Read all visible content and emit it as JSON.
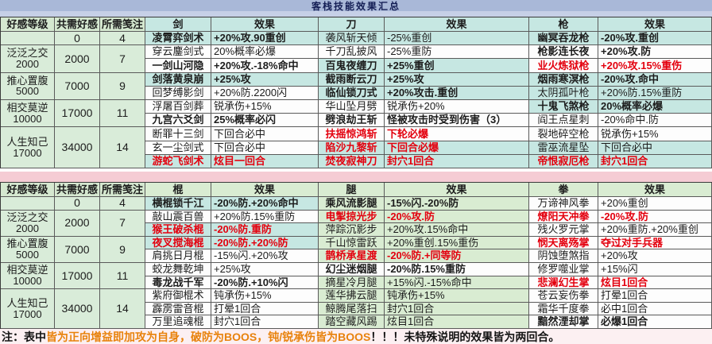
{
  "title": "客栈技能效果汇总",
  "effect_header": "效果",
  "left_headers": [
    "好感等级",
    "共需好感",
    "所需笺注"
  ],
  "levels": [
    {
      "name": "",
      "sub": "",
      "favor": "0",
      "notes": "4",
      "span": 1
    },
    {
      "name": "泛泛之交",
      "sub": "2000",
      "favor": "2000",
      "notes": "7",
      "span": 2
    },
    {
      "name": "推心置腹",
      "sub": "5000",
      "favor": "7000",
      "notes": "9",
      "span": 2
    },
    {
      "name": "相交莫逆",
      "sub": "10000",
      "favor": "17000",
      "notes": "11",
      "span": 2
    },
    {
      "name": "人生知己",
      "sub": "17000",
      "favor": "34000",
      "notes": "14",
      "span": 3
    }
  ],
  "tables": [
    {
      "header_bg": "c",
      "weapons": [
        {
          "header": "剑",
          "skills": [
            {
              "n": "凌霄弈剑术",
              "e": "+20%攻.90重创",
              "bg": "c",
              "b": true,
              "r": false
            },
            {
              "n": "穿云鏖剑式",
              "e": "20%概率必爆",
              "bg": "w",
              "b": false,
              "r": false
            },
            {
              "n": "一剑山河隐",
              "e": "+20%攻.-18%命中",
              "bg": "w",
              "b": true,
              "r": false
            },
            {
              "n": "剑落黄泉崩",
              "e": "+25%攻",
              "bg": "c",
              "b": true,
              "r": false
            },
            {
              "n": "回梦缚影剑",
              "e": "+20%防.2200闪",
              "bg": "w",
              "b": false,
              "r": false
            },
            {
              "n": "浮屠百剑葬",
              "e": "锐承伤+15%",
              "bg": "w",
              "b": false,
              "r": false
            },
            {
              "n": "九宫六爻剑",
              "e": "25%概率必闪",
              "bg": "w",
              "b": true,
              "r": false
            },
            {
              "n": "断罪十三剑",
              "e": "下回合必中",
              "bg": "w",
              "b": false,
              "r": false
            },
            {
              "n": "玄一尘剑式",
              "e": "下回合必中",
              "bg": "w",
              "b": false,
              "r": false
            },
            {
              "n": "游蛇飞剑术",
              "e": "炫目一回合",
              "bg": "c",
              "b": true,
              "r": true
            }
          ]
        },
        {
          "header": "刀",
          "skills": [
            {
              "n": "袭风斩天倾",
              "e": "-25%重创",
              "bg": "c",
              "b": false,
              "r": false
            },
            {
              "n": "千刀乱披风",
              "e": "-25%重防",
              "bg": "w",
              "b": false,
              "r": false
            },
            {
              "n": "百鬼夜缠刀",
              "e": "+25%重创",
              "bg": "c",
              "b": true,
              "r": false
            },
            {
              "n": "截雨断云刀",
              "e": "+25%攻",
              "bg": "c",
              "b": true,
              "r": false
            },
            {
              "n": "临仙锁刀式",
              "e": "+20%攻击.重创",
              "bg": "c",
              "b": true,
              "r": false
            },
            {
              "n": "华山坠月劈",
              "e": "锐承伤+20%",
              "bg": "w",
              "b": false,
              "r": false
            },
            {
              "n": "劈浪劫王斩",
              "e": "怪被攻击时受到伤害（3）",
              "bg": "w",
              "b": true,
              "r": false
            },
            {
              "n": "扶摇惊鸿斩",
              "e": "下轮必爆",
              "bg": "w",
              "b": true,
              "r": true
            },
            {
              "n": "陷沙九黎斩",
              "e": "下回合必爆",
              "bg": "c",
              "b": true,
              "r": true
            },
            {
              "n": "焚夜寂神刀",
              "e": "封穴1回合",
              "bg": "c",
              "b": true,
              "r": true
            }
          ]
        },
        {
          "header": "枪",
          "skills": [
            {
              "n": "幽冥吞龙枪",
              "e": "-20%攻.重创",
              "bg": "c",
              "b": true,
              "r": false
            },
            {
              "n": "枪影连长夜",
              "e": "+20%攻.防",
              "bg": "w",
              "b": true,
              "r": false
            },
            {
              "n": "业火炼狱枪",
              "e": "+20%攻.15%重伤",
              "bg": "w",
              "b": true,
              "r": true
            },
            {
              "n": "烟雨寒溟枪",
              "e": "-20%攻.命中",
              "bg": "c",
              "b": true,
              "r": false
            },
            {
              "n": "太阴孤叶枪",
              "e": "+20%防.15%重防",
              "bg": "c",
              "b": false,
              "r": false
            },
            {
              "n": "十鬼飞煞枪",
              "e": "20%概率必爆",
              "bg": "c",
              "b": true,
              "r": false
            },
            {
              "n": "阎王点星刺",
              "e": "-20%命中.防",
              "bg": "w",
              "b": false,
              "r": false
            },
            {
              "n": "裂地碎空枪",
              "e": "锐承伤+15%",
              "bg": "w",
              "b": false,
              "r": false
            },
            {
              "n": "雷巫流星坠",
              "e": "下回合必中",
              "bg": "c",
              "b": false,
              "r": false
            },
            {
              "n": "帝恨寂厄枪",
              "e": "封穴1回合",
              "bg": "c",
              "b": true,
              "r": true
            }
          ]
        }
      ]
    },
    {
      "header_bg": "g",
      "weapons": [
        {
          "header": "棍",
          "skills": [
            {
              "n": "横棍锁千江",
              "e": "-20%防.+20%命中",
              "bg": "c",
              "b": true,
              "r": false
            },
            {
              "n": "敲山震百兽",
              "e": "+20%防.15%重防",
              "bg": "w",
              "b": false,
              "r": false
            },
            {
              "n": "猴王破杀棍",
              "e": "-20%防.重防",
              "bg": "c",
              "b": true,
              "r": true
            },
            {
              "n": "夜叉搅海棍",
              "e": "-20%防.+20%防",
              "bg": "c",
              "b": true,
              "r": true
            },
            {
              "n": "肩挑日月棍",
              "e": "-15%闪.+20%攻",
              "bg": "w",
              "b": false,
              "r": false
            },
            {
              "n": "蛟龙舞乾坤",
              "e": "+25%攻",
              "bg": "w",
              "b": false,
              "r": false
            },
            {
              "n": "毒龙战千军",
              "e": "-20%防.+10%闪",
              "bg": "w",
              "b": true,
              "r": false
            },
            {
              "n": "紫府御棍术",
              "e": "钝承伤+15%",
              "bg": "w",
              "b": false,
              "r": false
            },
            {
              "n": "霹雳雷音棍",
              "e": "打晕1回合",
              "bg": "w",
              "b": false,
              "r": false
            },
            {
              "n": "万里追魂棍",
              "e": "封穴1回合",
              "bg": "w",
              "b": false,
              "r": false
            }
          ]
        },
        {
          "header": "腿",
          "skills": [
            {
              "n": "乘风流影腿",
              "e": "-15%闪.-20%防",
              "bg": "g",
              "b": true,
              "r": false
            },
            {
              "n": "电掣掠光步",
              "e": "-20%攻.防",
              "bg": "g",
              "b": true,
              "r": true
            },
            {
              "n": "萍踪沉影步",
              "e": "+20%攻.15%命中",
              "bg": "g",
              "b": false,
              "r": false
            },
            {
              "n": "千山惊雷跃",
              "e": "+20%重创.15%重伤",
              "bg": "g",
              "b": false,
              "r": false
            },
            {
              "n": "鹊桥承星渡",
              "e": "-20%防.+同等防",
              "bg": "g",
              "b": true,
              "r": true
            },
            {
              "n": "幻尘迷烟腿",
              "e": "-20%防.15%重防",
              "bg": "w",
              "b": true,
              "r": false
            },
            {
              "n": "摘星冷月腿",
              "e": "+15%闪.-15%命中",
              "bg": "g",
              "b": false,
              "r": false
            },
            {
              "n": "莲华拂云腿",
              "e": "钝承伤+15%",
              "bg": "g",
              "b": false,
              "r": false
            },
            {
              "n": "鲸腾尾落扫",
              "e": "封穴1回合",
              "bg": "g",
              "b": false,
              "r": false
            },
            {
              "n": "踏空藏风踢",
              "e": "炫目1回合",
              "bg": "g",
              "b": false,
              "r": false
            }
          ]
        },
        {
          "header": "拳",
          "skills": [
            {
              "n": "万谛神风拳",
              "e": "+20%重创",
              "bg": "w",
              "b": false,
              "r": false
            },
            {
              "n": "燎阳天冲拳",
              "e": "-20%攻.防",
              "bg": "w",
              "b": true,
              "r": true
            },
            {
              "n": "残火罗元掌",
              "e": "+20%重防.+20%重创",
              "bg": "w",
              "b": false,
              "r": false
            },
            {
              "n": "悯天离殇掌",
              "e": "夺过对手兵器",
              "bg": "w",
              "b": true,
              "r": true
            },
            {
              "n": "阴蚀堕煞指",
              "e": "+20%攻",
              "bg": "w",
              "b": false,
              "r": false
            },
            {
              "n": "修罗噬业掌",
              "e": "+15%闪",
              "bg": "w",
              "b": false,
              "r": false
            },
            {
              "n": "悲澜幻生掌",
              "e": "炫目1回合",
              "bg": "w",
              "b": true,
              "r": true
            },
            {
              "n": "苍云妄伤拳",
              "e": "打晕1回合",
              "bg": "w",
              "b": false,
              "r": false
            },
            {
              "n": "霜华千度拳",
              "e": "必中1回合",
              "bg": "w",
              "b": false,
              "r": false
            },
            {
              "n": "黯然湮却掌",
              "e": "必爆1回合",
              "bg": "w",
              "b": true,
              "r": false
            }
          ]
        }
      ]
    }
  ],
  "footer": {
    "prefix": "注：表中",
    "orange": "皆为正向增益即加攻为自身，破防为BOOS，钝/锐承伤皆为BOOS",
    "suffix": "！！！未特殊说明的效果皆为两回合。"
  },
  "colors": {
    "title_bar": "#a9b8d8",
    "sub_band": "#c6d0e7",
    "cyan_cell": "#c6e7e2",
    "green_cell": "#d9ecd2",
    "level_cell": "#d9ecd9",
    "white_cell": "#fdfdfd",
    "pink_band": "#f5ccd4",
    "red_text": "#e3000e",
    "orange_text": "#e8820c"
  }
}
